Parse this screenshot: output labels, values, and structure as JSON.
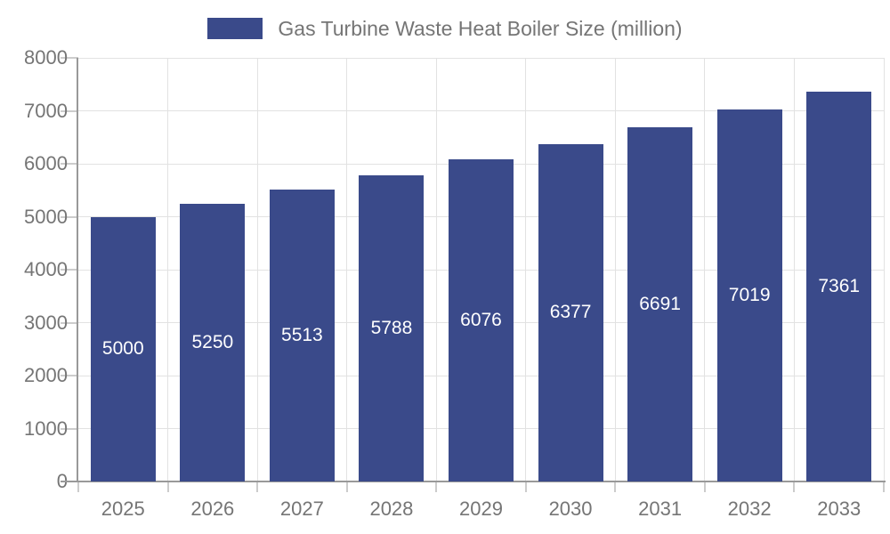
{
  "chart_data": {
    "type": "bar",
    "title": "",
    "legend_position": "top-center",
    "grid": true,
    "categories": [
      "2025",
      "2026",
      "2027",
      "2028",
      "2029",
      "2030",
      "2031",
      "2032",
      "2033"
    ],
    "series": [
      {
        "name": "Gas Turbine Waste Heat Boiler Size (million)",
        "values": [
          5000,
          5250,
          5513,
          5788,
          6076,
          6377,
          6691,
          7019,
          7361
        ]
      }
    ],
    "bar_labels": [
      "5000",
      "5250",
      "5513",
      "5788",
      "6076",
      "6377",
      "6691",
      "7019",
      "7361"
    ],
    "xlabel": "",
    "ylabel": "",
    "ylim": [
      0,
      8000
    ],
    "yticks": [
      0,
      1000,
      2000,
      3000,
      4000,
      5000,
      6000,
      7000,
      8000
    ],
    "colors": {
      "bar": "#3A4A8A",
      "bar_label_text": "#ffffff",
      "axis_line": "#999999",
      "grid_line": "#e2e2e2",
      "tick_mark": "#cccccc",
      "tick_text": "#757575"
    }
  }
}
